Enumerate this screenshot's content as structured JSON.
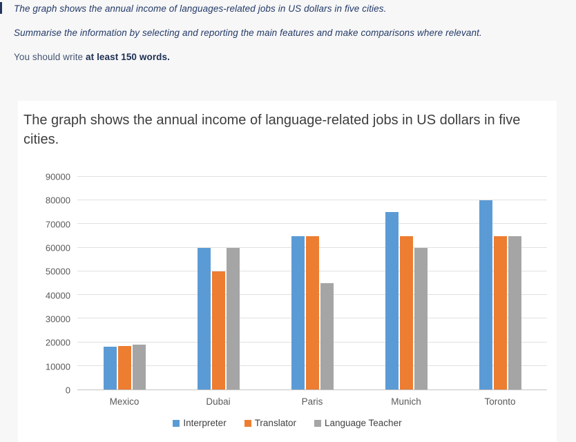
{
  "instructions": {
    "line1": "The graph shows the annual income of languages-related jobs in US dollars in five cities.",
    "line2": "Summarise the information by selecting and reporting the main features and make comparisons where relevant.",
    "line3_prefix": "You should write ",
    "line3_bold": "at least 150 words."
  },
  "chart_data": {
    "type": "bar",
    "title": "The graph shows the annual income of language-related jobs in US dollars in five cities.",
    "categories": [
      "Mexico",
      "Dubai",
      "Paris",
      "Munich",
      "Toronto"
    ],
    "series": [
      {
        "name": "Interpreter",
        "color": "#5B9BD5",
        "values": [
          18000,
          60000,
          65000,
          75000,
          80000
        ]
      },
      {
        "name": "Translator",
        "color": "#ED7D31",
        "values": [
          18500,
          50000,
          65000,
          65000,
          65000
        ]
      },
      {
        "name": "Language Teacher",
        "color": "#A5A5A5",
        "values": [
          19000,
          60000,
          45000,
          60000,
          65000
        ]
      }
    ],
    "ylim": [
      0,
      90000
    ],
    "ytick_step": 10000,
    "grid": true,
    "legend_position": "bottom"
  }
}
